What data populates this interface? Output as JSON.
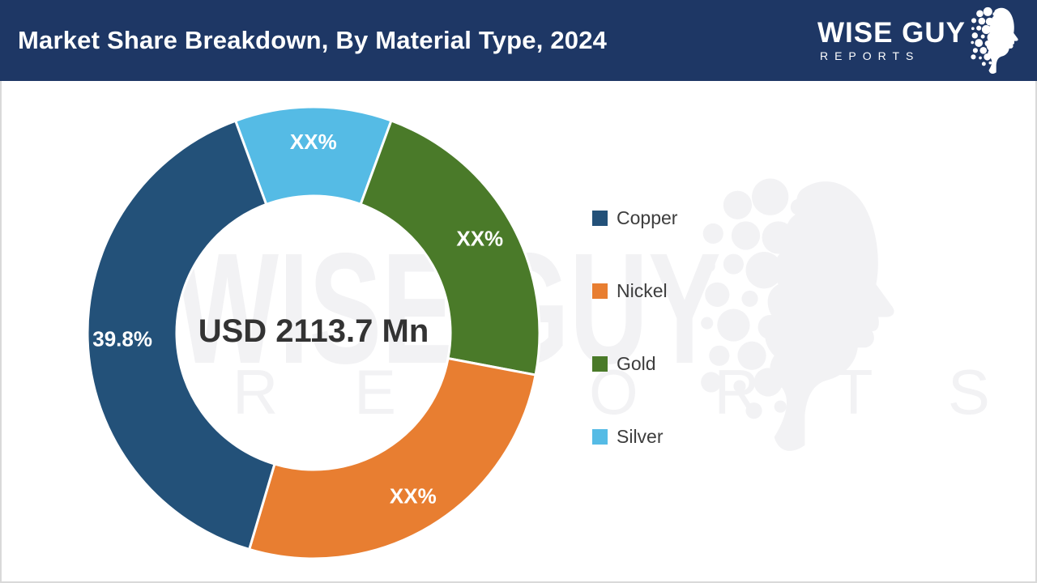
{
  "header": {
    "title": "Market Share Breakdown, By Material Type, 2024",
    "logo": {
      "line1": "WISE GUY",
      "line2": "REPORTS"
    }
  },
  "watermark": {
    "line1": "WISE GUY",
    "line2": "R E P O R T S"
  },
  "chart_data": {
    "type": "donut",
    "title": "Market Share Breakdown, By Material Type, 2024",
    "center_label": "USD 2113.7 Mn",
    "legend_position": "right",
    "segments": [
      {
        "name": "Copper",
        "label": "39.8%",
        "value": 39.8,
        "color": "#235179"
      },
      {
        "name": "Nickel",
        "label": "XX%",
        "value": 26.6,
        "color": "#e87e31"
      },
      {
        "name": "Gold",
        "label": "XX%",
        "value": 22.4,
        "color": "#4a7a29"
      },
      {
        "name": "Silver",
        "label": "XX%",
        "value": 11.2,
        "color": "#55bbe5"
      }
    ],
    "draw_order": [
      "Silver",
      "Gold",
      "Nickel",
      "Copper"
    ],
    "start_angle_deg": -20.2
  },
  "colors": {
    "header_bg": "#1e3765",
    "canvas_border": "#d9d9d9",
    "center_text": "#333333",
    "legend_text": "#3d3d3d",
    "watermark": "#f2f2f4"
  }
}
